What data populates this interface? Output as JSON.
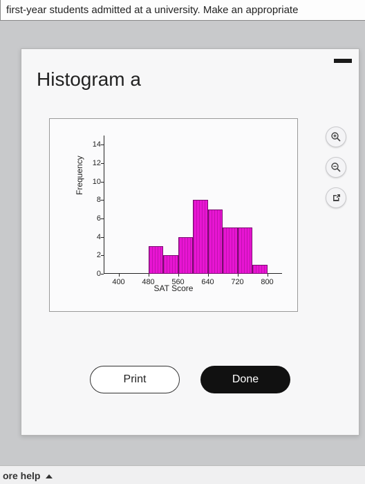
{
  "top_text": "first-year students admitted at a university. Make an appropriate",
  "paper": {
    "title": "Histogram a",
    "minus_icon": "minimize"
  },
  "chart": {
    "type": "histogram",
    "xlabel": "SAT Score",
    "ylabel": "Frequency",
    "background_color": "#fbfbfc",
    "bar_fill": "#e815d3",
    "bar_border": "#7a0c70",
    "axis_color": "#222222",
    "xlim": [
      360,
      840
    ],
    "ylim": [
      0,
      15
    ],
    "xtick_labels": [
      "400",
      "480",
      "560",
      "640",
      "720",
      "800"
    ],
    "xtick_values": [
      400,
      480,
      560,
      640,
      720,
      800
    ],
    "ytick_labels": [
      "0",
      "2",
      "4",
      "6",
      "8",
      "10",
      "12",
      "14"
    ],
    "ytick_values": [
      0,
      2,
      4,
      6,
      8,
      10,
      12,
      14
    ],
    "bin_width": 40,
    "bins": [
      {
        "start": 480,
        "freq": 3
      },
      {
        "start": 520,
        "freq": 2
      },
      {
        "start": 560,
        "freq": 4
      },
      {
        "start": 600,
        "freq": 8
      },
      {
        "start": 640,
        "freq": 7
      },
      {
        "start": 680,
        "freq": 5
      },
      {
        "start": 720,
        "freq": 5
      },
      {
        "start": 760,
        "freq": 1
      }
    ],
    "tick_fontsize": 11,
    "label_fontsize": 12
  },
  "tools": {
    "zoom_in": "zoom-in",
    "zoom_out": "zoom-out",
    "expand": "open-new"
  },
  "buttons": {
    "print": "Print",
    "done": "Done"
  },
  "footer": {
    "help": "ore help"
  }
}
